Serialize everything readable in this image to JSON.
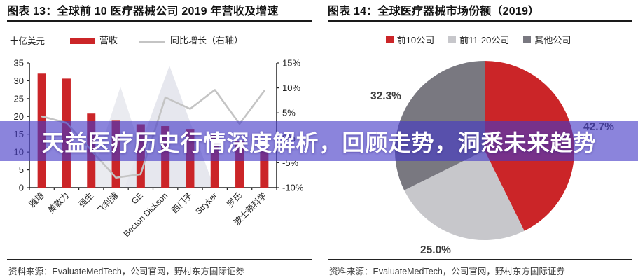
{
  "banner": {
    "text": "天益医疗历史行情深度解析，回顾走势，洞悉未来趋势"
  },
  "colors": {
    "red": "#CB2528",
    "light_gray": "#C7C7CB",
    "dark_gray": "#797880",
    "line_gray": "#C4C4C4",
    "banner_overlay": "rgba(68,57,199,0.62)"
  },
  "left_panel": {
    "title": "图表 13：全球前 10 医疗器械公司 2019 年营收及增速",
    "unit_label": "十亿美元",
    "legend": {
      "bar": "营收",
      "line": "同比增长（右轴）"
    },
    "source": "资料来源：EvaluateMedTech，公司官网，野村东方国际证券"
  },
  "right_panel": {
    "title": "图表 14：全球医疗器械市场份额（2019）",
    "legend": [
      "前10公司",
      "前11-20公司",
      "其他公司"
    ],
    "source": "资料来源：EvaluateMedTech，公司官网，野村东方国际证券"
  },
  "chart_data": [
    {
      "type": "bar",
      "title": "全球前 10 医疗器械公司 2019 年营收及增速",
      "categories": [
        "雅培",
        "美敦力",
        "强生",
        "飞利浦",
        "GE",
        "Becton Dickson",
        "西门子",
        "Stryker",
        "罗氏",
        "波士顿科学"
      ],
      "series": [
        {
          "name": "营收",
          "type": "bar",
          "axis": "left",
          "values": [
            32.0,
            30.6,
            20.8,
            18.8,
            17.8,
            17.3,
            16.5,
            14.9,
            13.0,
            10.7
          ]
        },
        {
          "name": "同比增长（右轴）",
          "type": "line",
          "axis": "right",
          "values": [
            4.3,
            3.0,
            -2.5,
            -8.0,
            -7.3,
            8.1,
            5.8,
            9.6,
            2.8,
            9.4
          ]
        }
      ],
      "y_left": {
        "label": "十亿美元",
        "min": 0,
        "max": 35,
        "step": 5
      },
      "y_right": {
        "min": -10,
        "max": 15,
        "step": 5,
        "unit": "%"
      },
      "legend_position": "top",
      "grid": false
    },
    {
      "type": "pie",
      "title": "全球医疗器械市场份额（2019）",
      "labels": [
        "前10公司",
        "前11-20公司",
        "其他公司"
      ],
      "values": [
        42.7,
        25.0,
        32.3
      ],
      "data_labels": [
        "42.7%",
        "25.0%",
        "32.3%"
      ],
      "slice_colors": [
        "#CB2528",
        "#C7C7CB",
        "#797880"
      ],
      "start_angle_deg": 0,
      "direction": "clockwise",
      "legend_position": "top"
    }
  ]
}
